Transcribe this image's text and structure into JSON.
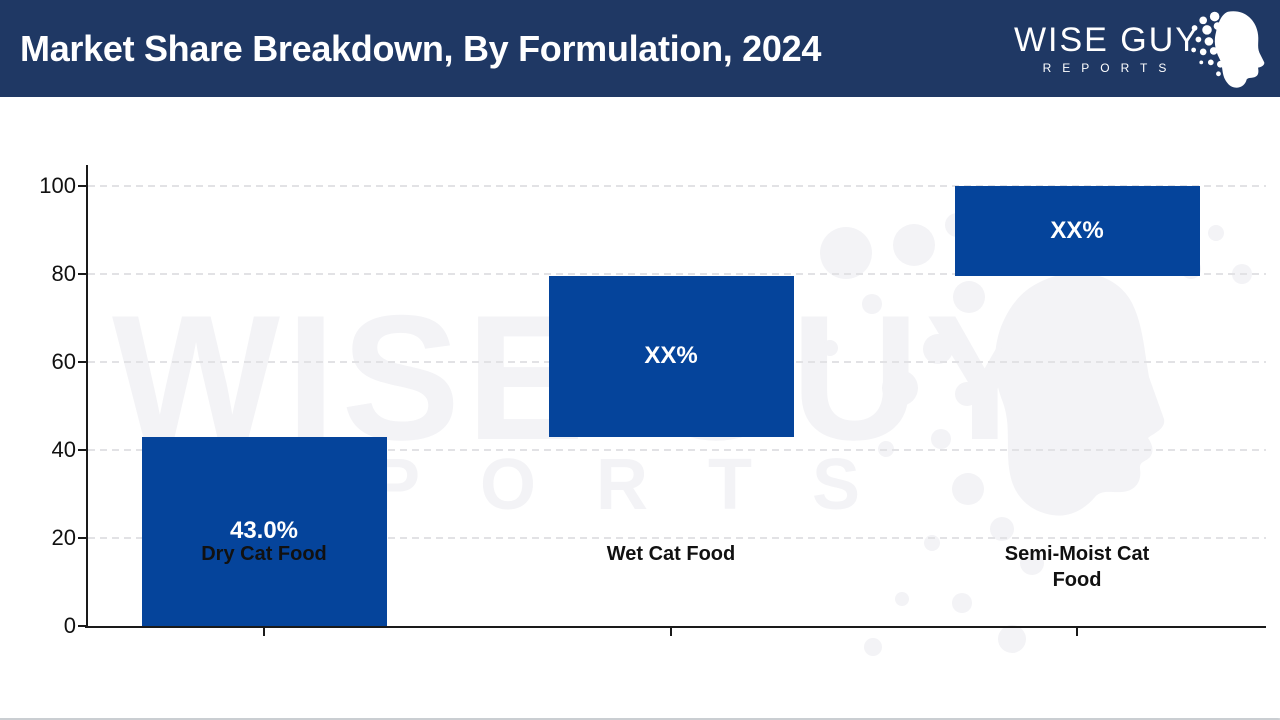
{
  "header": {
    "title": "Market Share Breakdown, By Formulation, 2024",
    "logo": {
      "line1": "WISE GUY",
      "line2": "REPORTS"
    }
  },
  "watermark": {
    "line1": "WISE GUY",
    "line2": "REPORTS"
  },
  "chart_data": {
    "type": "bar",
    "subtype": "floating-waterfall-segments",
    "title": "Market Share Breakdown, By Formulation, 2024",
    "categories": [
      "Dry Cat Food",
      "Wet Cat Food",
      "Semi-Moist Cat Food"
    ],
    "bars": [
      {
        "category": "Dry Cat Food",
        "start": 0,
        "end": 43.0,
        "label": "43.0%"
      },
      {
        "category": "Wet Cat Food",
        "start": 43.0,
        "end": 79.5,
        "label": "XX%"
      },
      {
        "category": "Semi-Moist Cat Food",
        "start": 79.5,
        "end": 100.0,
        "label": "XX%"
      }
    ],
    "xlabel": "",
    "ylabel": "",
    "ylim": [
      0,
      100
    ],
    "yticks": [
      0,
      20,
      40,
      60,
      80,
      100
    ],
    "grid": "horizontal-dashed",
    "legend": "none",
    "bar_color": "#05449b",
    "bar_label_color": "#ffffff"
  },
  "colors": {
    "header_bg": "#1f3864",
    "bar": "#05449b",
    "grid": "#e2e2e5",
    "axis": "#1a1a1a",
    "watermark": "#f3f3f6",
    "title_text": "#ffffff"
  }
}
